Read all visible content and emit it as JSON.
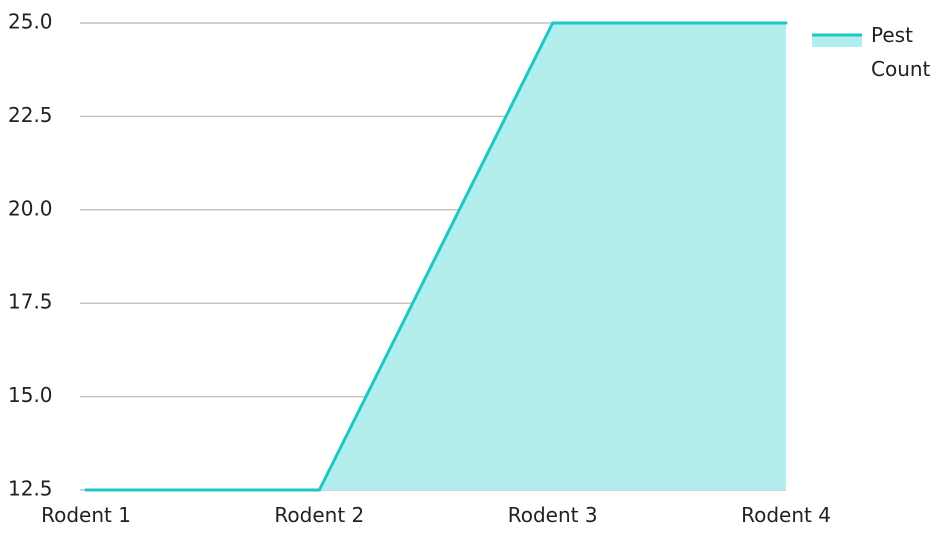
{
  "chart_data": {
    "type": "area",
    "categories": [
      "Rodent 1",
      "Rodent 2",
      "Rodent 3",
      "Rodent 4"
    ],
    "series": [
      {
        "name": "Pest Count",
        "values": [
          12.5,
          12.5,
          25.0,
          25.0
        ],
        "line_color": "#1fc6c6",
        "fill_color": "#b2eeee"
      }
    ],
    "yticks": [
      "12.5",
      "15.0",
      "17.5",
      "20.0",
      "22.5",
      "25.0"
    ],
    "ylim": [
      12.5,
      25.0
    ],
    "grid": true,
    "legend": {
      "position": "top-right",
      "lines": [
        "Pest",
        "Count"
      ]
    },
    "title": "",
    "xlabel": "",
    "ylabel": ""
  }
}
